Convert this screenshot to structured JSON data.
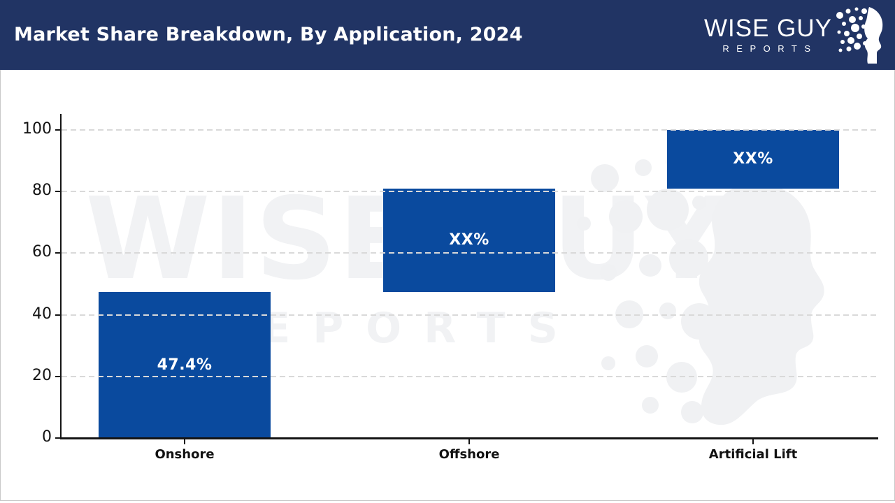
{
  "header": {
    "title": "Market Share Breakdown, By Application, 2024",
    "logo": {
      "line1": "WISE GUY",
      "line2": "REPORTS"
    }
  },
  "watermark": {
    "line1": "WISE GUY",
    "line2": "REPORTS"
  },
  "colors": {
    "header_bg": "#213464",
    "bar_blue": "#0a4a9e",
    "axis": "#141414",
    "gridline": "#d9d9d9",
    "watermark_gray": "#f1f2f4"
  },
  "chart_data": {
    "type": "bar",
    "subtype": "waterfall",
    "title": "Market Share Breakdown, By Application, 2024",
    "categories": [
      "Onshore",
      "Offshore",
      "Artificial Lift"
    ],
    "bars": [
      {
        "category": "Onshore",
        "start": 0,
        "end": 47.4,
        "value_label": "47.4%"
      },
      {
        "category": "Offshore",
        "start": 47.4,
        "end": 81,
        "value_label": "XX%"
      },
      {
        "category": "Artificial Lift",
        "start": 81,
        "end": 100,
        "value_label": "XX%"
      }
    ],
    "ylim": [
      0,
      100
    ],
    "yticks": [
      0,
      20,
      40,
      60,
      80,
      100
    ],
    "xlabel": "",
    "ylabel": "",
    "grid": "horizontal-dashed",
    "legend": "none",
    "bar_color": "#0a4a9e",
    "value_label_color": "#ffffff"
  }
}
